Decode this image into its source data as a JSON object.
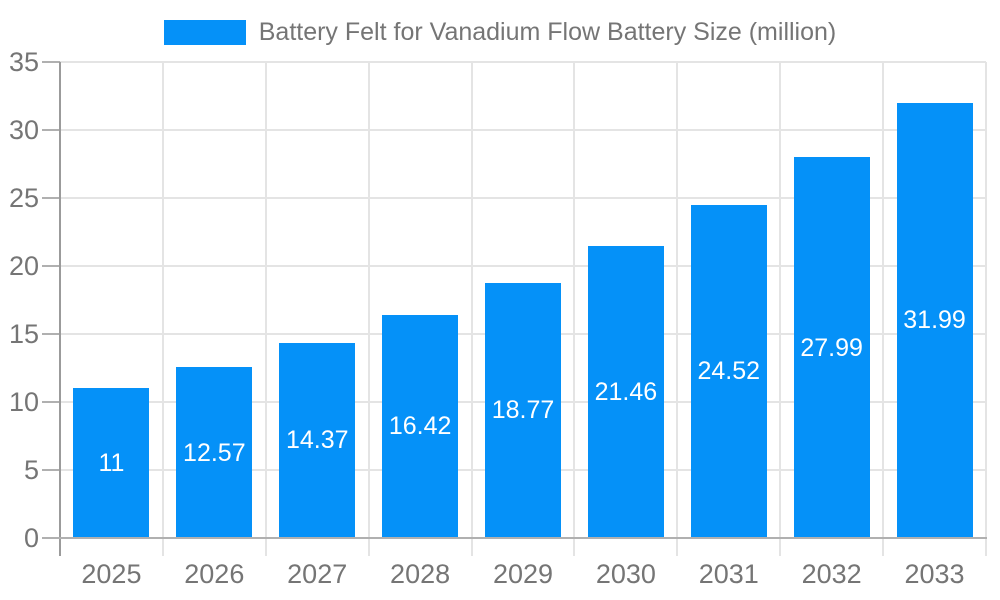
{
  "chart_data": {
    "type": "bar",
    "title": "Battery Felt for Vanadium Flow Battery Size (million)",
    "categories": [
      "2025",
      "2026",
      "2027",
      "2028",
      "2029",
      "2030",
      "2031",
      "2032",
      "2033"
    ],
    "values": [
      11,
      12.57,
      14.37,
      16.42,
      18.77,
      21.46,
      24.52,
      27.99,
      31.99
    ],
    "value_labels": [
      "11",
      "12.57",
      "14.37",
      "16.42",
      "18.77",
      "21.46",
      "24.52",
      "27.99",
      "31.99"
    ],
    "xlabel": "",
    "ylabel": "",
    "ylim": [
      0,
      35
    ],
    "yticks": [
      0,
      5,
      10,
      15,
      20,
      25,
      30,
      35
    ],
    "grid": "both",
    "legend_position": "top-center",
    "value_label_position": "center-of-bar",
    "colors": {
      "bar": "#0591f8",
      "grid": "#e4e4e4",
      "axis": "#9b9b9b",
      "axis_light": "#b0b0b0",
      "text": "#757575",
      "value_label": "#ffffff",
      "background": "#ffffff"
    }
  }
}
